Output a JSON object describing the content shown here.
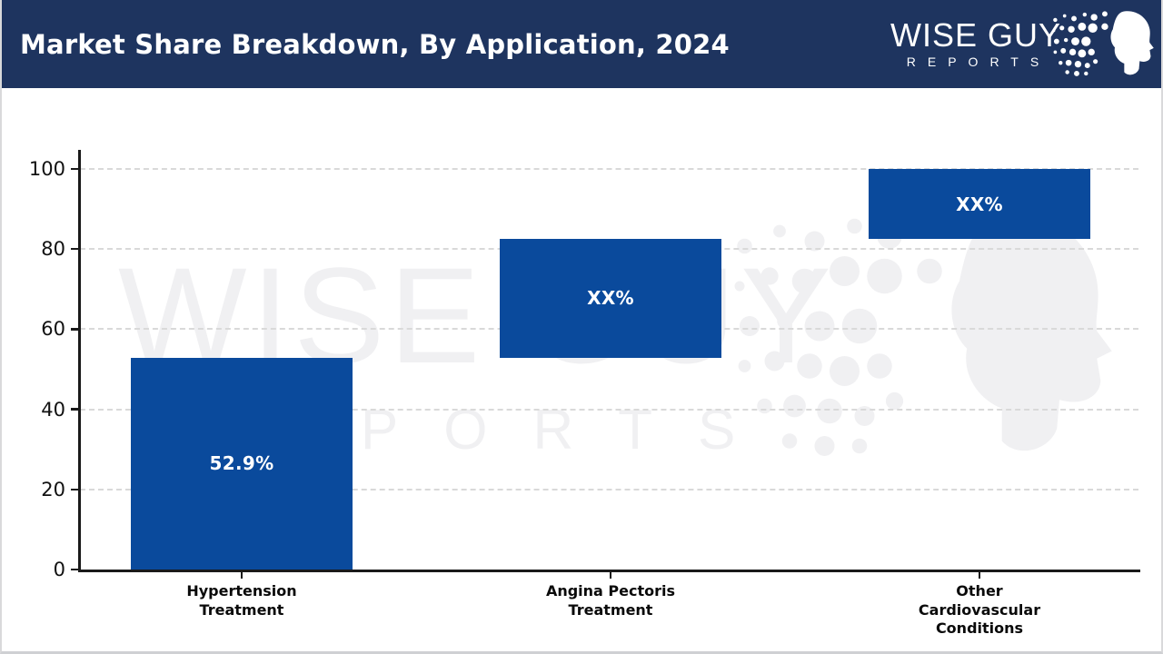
{
  "header": {
    "title": "Market Share Breakdown, By Application, 2024",
    "bg_color": "#1e345f",
    "logo": {
      "line1": "WISE GUY",
      "line2": "REPORTS"
    }
  },
  "watermark": {
    "line1": "WISE GUY",
    "line2": "REPORTS"
  },
  "chart_data": {
    "type": "bar",
    "subtype": "waterfall-stacked",
    "title": "Market Share Breakdown, By Application, 2024",
    "categories": [
      "Hypertension Treatment",
      "Angina Pectoris Treatment",
      "Other Cardiovascular Conditions"
    ],
    "categories_lines": [
      [
        "Hypertension",
        "Treatment"
      ],
      [
        "Angina Pectoris",
        "Treatment"
      ],
      [
        "Other",
        "Cardiovascular",
        "Conditions"
      ]
    ],
    "bars": [
      {
        "category": "Hypertension Treatment",
        "start": 0,
        "end": 52.9,
        "label": "52.9%"
      },
      {
        "category": "Angina Pectoris Treatment",
        "start": 52.9,
        "end": 82.5,
        "label": "XX%"
      },
      {
        "category": "Other Cardiovascular Conditions",
        "start": 82.5,
        "end": 100,
        "label": "XX%"
      }
    ],
    "bar_color": "#0a4a9c",
    "value_label_color": "#ffffff",
    "axis_color": "#1a1a1a",
    "grid_color": "#d9d9d9",
    "ylim": [
      0,
      100
    ],
    "yticks": [
      0,
      20,
      40,
      60,
      80,
      100
    ],
    "grid": "horizontal-dashed",
    "legend": "none",
    "xlabel": "",
    "ylabel": ""
  }
}
